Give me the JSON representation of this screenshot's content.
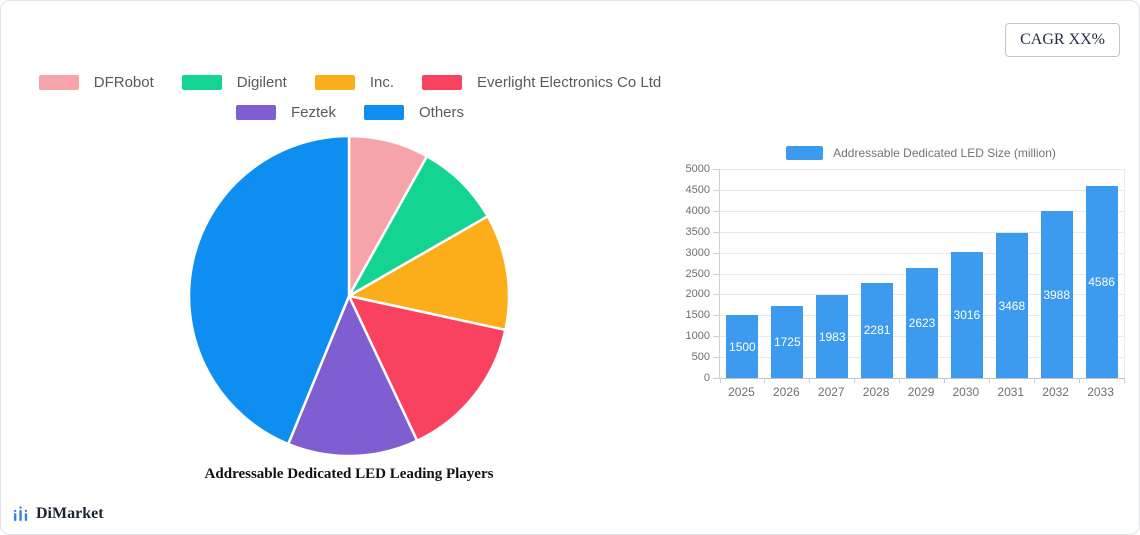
{
  "card": {
    "cagr_button": "CAGR XX%"
  },
  "brand": {
    "name": "DiMarket",
    "icon": "dimarket-bars-icon",
    "icon_color": "#3b7ef0"
  },
  "chart_data": [
    {
      "type": "pie",
      "title": "Addressable Dedicated LED Leading Players",
      "labels": [
        "DFRobot",
        "Digilent",
        "Inc.",
        "Everlight Electronics Co Ltd",
        "Feztek",
        "Others"
      ],
      "values": [
        8.1,
        8.6,
        11.7,
        14.6,
        13.2,
        43.8
      ],
      "colors": [
        "#f7a3aa",
        "#14d492",
        "#fbad1a",
        "#f9425f",
        "#7e5ed0",
        "#0f8ef2"
      ],
      "legend_position": "top",
      "legend_rows": [
        4,
        2
      ],
      "start_angle_deg": 0,
      "clockwise": true,
      "slice_border_color": "#ffffff"
    },
    {
      "type": "bar",
      "series_name": "Addressable Dedicated LED Size (million)",
      "categories": [
        "2025",
        "2026",
        "2027",
        "2028",
        "2029",
        "2030",
        "2031",
        "2032",
        "2033"
      ],
      "values": [
        1500,
        1725,
        1983,
        2281,
        2623,
        3016,
        3468,
        3988,
        4586
      ],
      "bar_color": "#3c9bee",
      "value_label_color": "#ffffff",
      "ylim": [
        0,
        5000
      ],
      "ytick_step": 500,
      "yticks": [
        0,
        500,
        1000,
        1500,
        2000,
        2500,
        3000,
        3500,
        4000,
        4500,
        5000
      ],
      "grid": true,
      "legend_position": "top"
    }
  ]
}
